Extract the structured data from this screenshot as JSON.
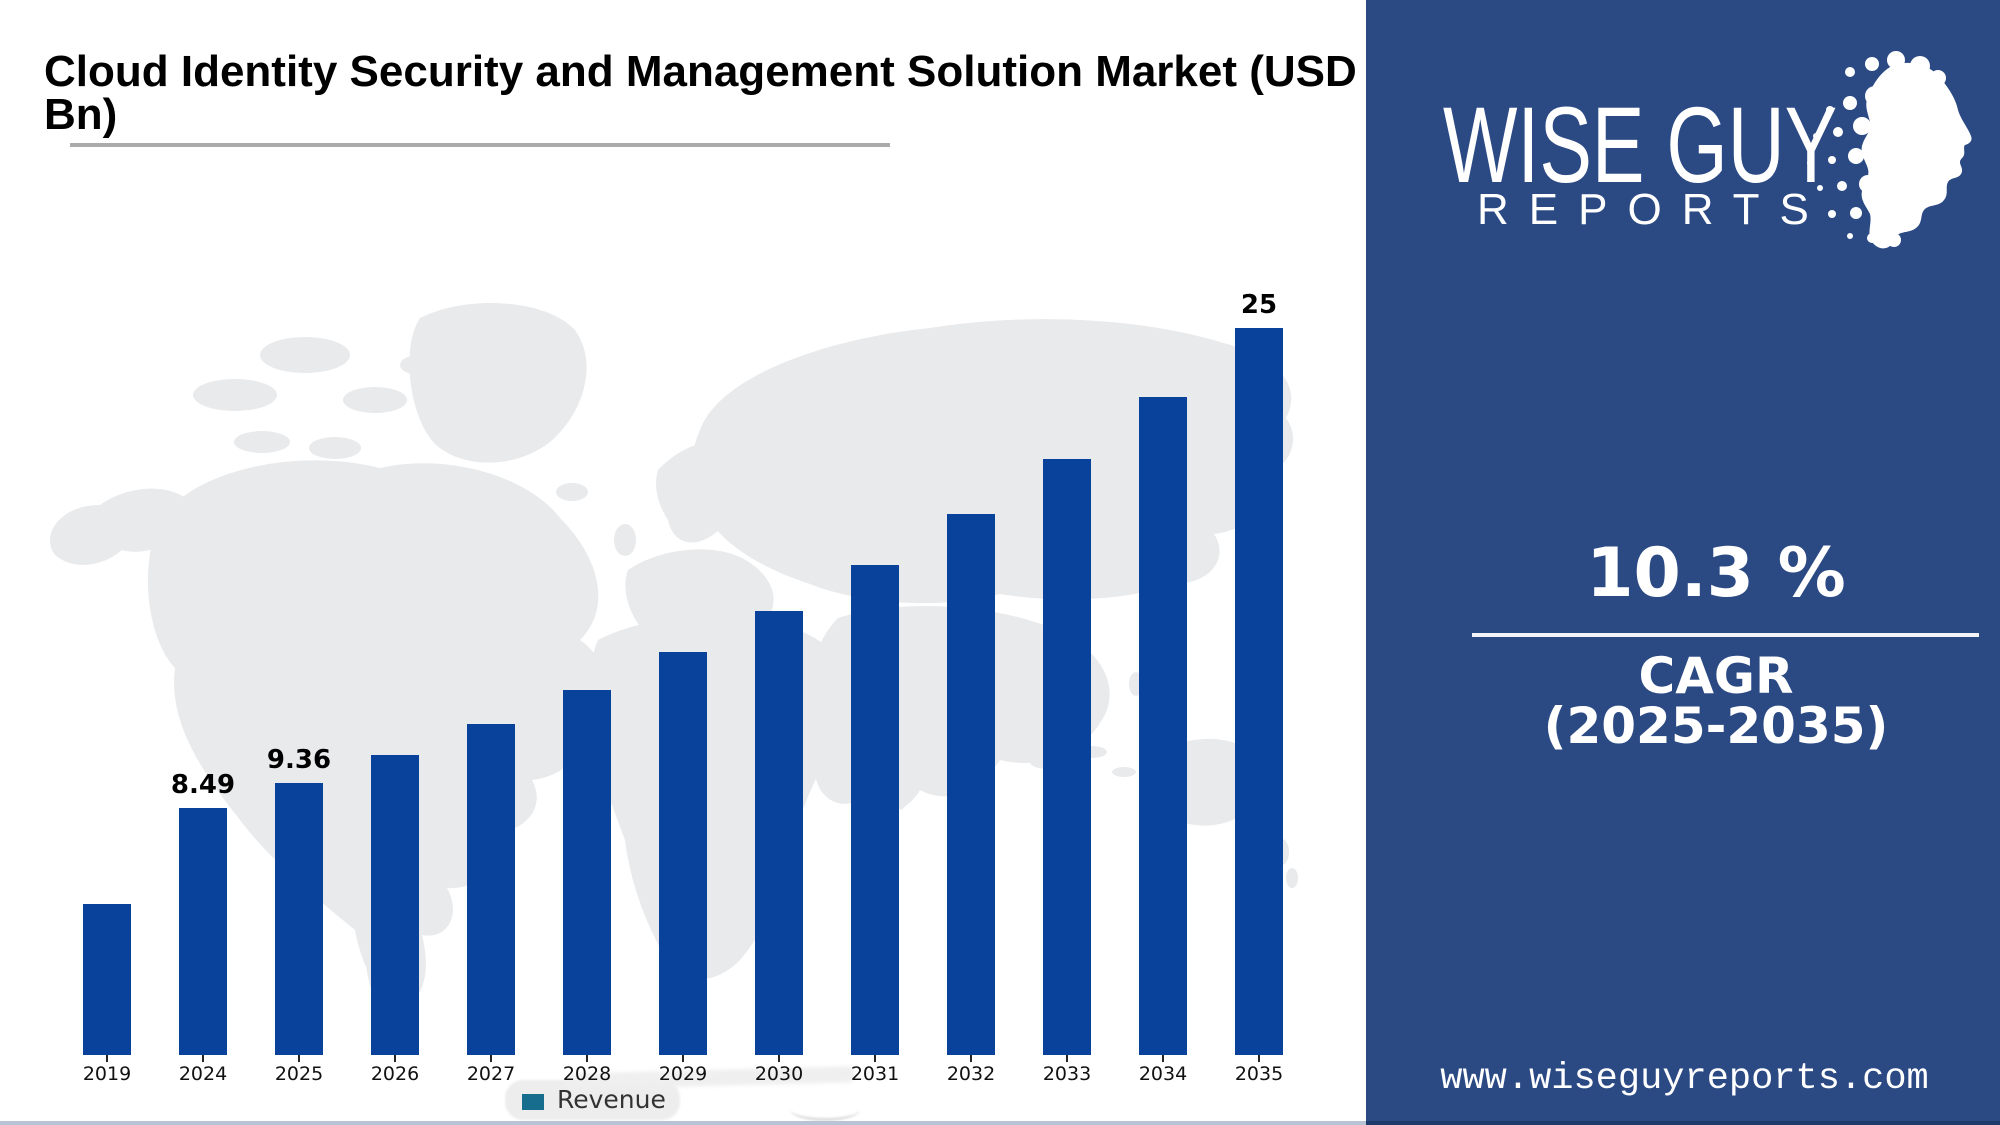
{
  "title": {
    "line1": "Cloud Identity Security and Management Solution Market (USD",
    "line2": "Bn)",
    "full": "Cloud Identity Security and Management Solution Market (USD Bn)"
  },
  "chart_data": {
    "type": "bar",
    "title": "Cloud Identity Security and Management Solution Market (USD Bn)",
    "categories": [
      "2019",
      "2024",
      "2025",
      "2026",
      "2027",
      "2028",
      "2029",
      "2030",
      "2031",
      "2032",
      "2033",
      "2034",
      "2035"
    ],
    "values": [
      5.19,
      8.49,
      9.36,
      10.32,
      11.39,
      12.56,
      13.85,
      15.28,
      16.86,
      18.59,
      20.51,
      22.62,
      25
    ],
    "series": [
      {
        "name": "Revenue"
      }
    ],
    "data_labels": {
      "2024": "8.49",
      "2025": "9.36",
      "2035": "25"
    },
    "xlabel": "",
    "ylabel": "",
    "ylim": [
      0,
      27
    ],
    "grid": false,
    "legend_position": "bottom",
    "bar_color": "#08429B",
    "legend_swatch_color": "#176D8E",
    "background": "light-gray world map watermark"
  },
  "legend": {
    "label": "Revenue"
  },
  "panel": {
    "bg_color": "#2B4A84",
    "logo": {
      "line1": "WISE GUY",
      "line2": "REPORTS"
    },
    "cagr": {
      "value": "10.3 %",
      "label_line1": "CAGR",
      "label_line2": "(2025-2035)"
    },
    "website": "www.wiseguyreports.com"
  }
}
